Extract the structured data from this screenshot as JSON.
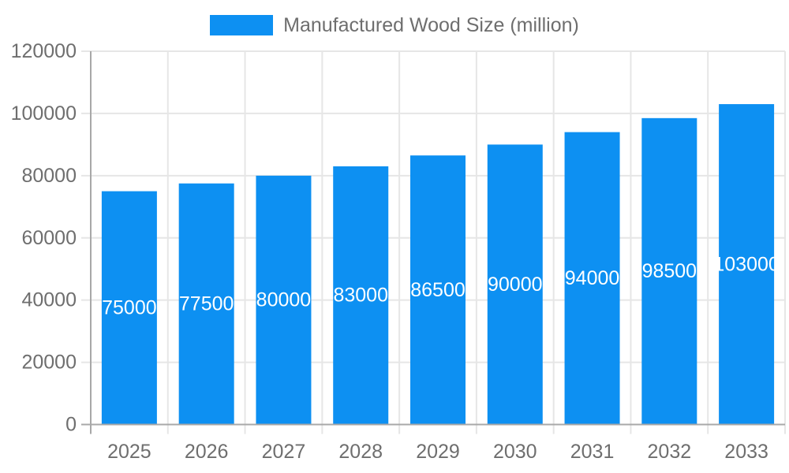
{
  "legend": {
    "label": "Manufactured Wood Size (million)"
  },
  "chart_data": {
    "type": "bar",
    "title": "",
    "xlabel": "",
    "ylabel": "",
    "categories": [
      "2025",
      "2026",
      "2027",
      "2028",
      "2029",
      "2030",
      "2031",
      "2032",
      "2033"
    ],
    "series": [
      {
        "name": "Manufactured Wood Size (million)",
        "values": [
          75000,
          77500,
          80000,
          83000,
          86500,
          90000,
          94000,
          98500,
          103000
        ],
        "color": "#0d90f2"
      }
    ],
    "bar_value_labels": [
      "75000",
      "77500",
      "80000",
      "83000",
      "86500",
      "90000",
      "94000",
      "98500",
      "103000"
    ],
    "value_label_position": "inside-center",
    "ylim": [
      0,
      120000
    ],
    "ytick_values": [
      0,
      20000,
      40000,
      60000,
      80000,
      100000,
      120000
    ],
    "ytick_labels": [
      "0",
      "20000",
      "40000",
      "60000",
      "80000",
      "100000",
      "120000"
    ],
    "grid": true,
    "legend_position": "top-center"
  },
  "theme": {
    "background": "#ffffff",
    "bar_color": "#0d90f2",
    "value_label_color": "#ffffff",
    "gridline_color": "#e6e6e6",
    "axis_line_color": "#a8a8a8",
    "axis_label_color": "#6e6e6e",
    "legend_text_color": "#6e6e6e"
  }
}
